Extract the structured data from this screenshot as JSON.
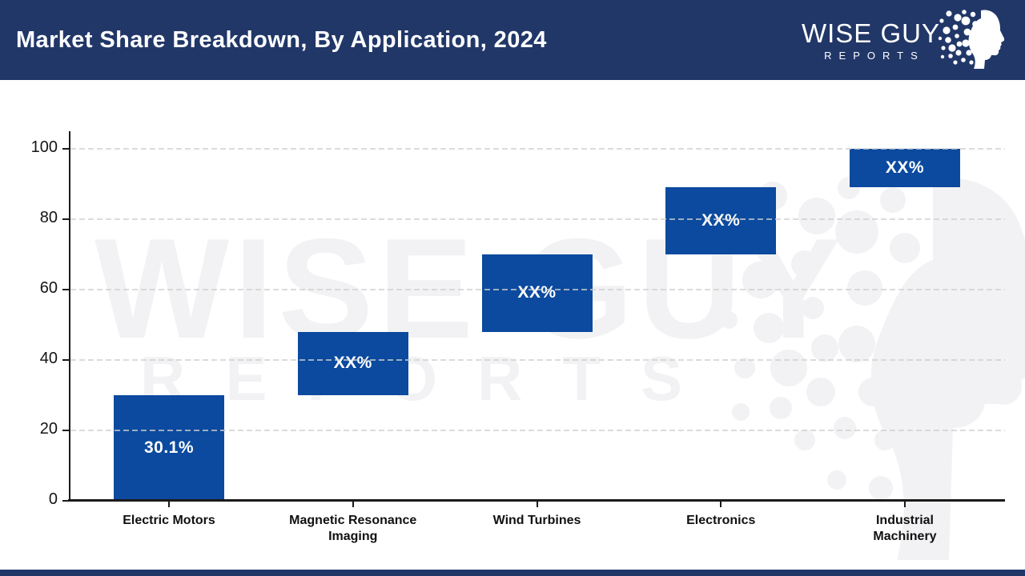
{
  "header": {
    "title": "Market Share Breakdown, By Application, 2024",
    "logo": {
      "line1": "WISE GUY",
      "line2": "REPORTS"
    }
  },
  "watermark": {
    "line1": "WISE GUY",
    "line2": "REPORTS"
  },
  "footer": {},
  "chart_data": {
    "type": "bar",
    "subtype": "waterfall",
    "title": "Market Share Breakdown, By Application, 2024",
    "categories": [
      "Electric Motors",
      "Magnetic Resonance\nImaging",
      "Wind Turbines",
      "Electronics",
      "Industrial\nMachinery"
    ],
    "segments": [
      {
        "category": "Electric Motors",
        "start": 0,
        "end": 30.1,
        "label": "30.1%"
      },
      {
        "category": "Magnetic Resonance Imaging",
        "start": 30.1,
        "end": 48,
        "label": "XX%"
      },
      {
        "category": "Wind Turbines",
        "start": 48,
        "end": 70,
        "label": "XX%"
      },
      {
        "category": "Electronics",
        "start": 70,
        "end": 89,
        "label": "XX%"
      },
      {
        "category": "Industrial Machinery",
        "start": 89,
        "end": 100,
        "label": "XX%"
      }
    ],
    "xlabel": "",
    "ylabel": "",
    "ylim": [
      0,
      100
    ],
    "yticks": [
      0,
      20,
      40,
      60,
      80,
      100
    ],
    "grid": "horizontal dashed, drawn over bars",
    "legend": "none",
    "bar_color": "#0B4A9E",
    "bar_label_color": "#FFFFFF"
  },
  "colors": {
    "header_bg": "#213768",
    "footer_bg": "#213768",
    "bar": "#0B4A9E",
    "grid": "#CFCFCF",
    "axis": "#1A1A1A",
    "watermark": "#F2F2F4",
    "background": "#FFFFFF"
  }
}
